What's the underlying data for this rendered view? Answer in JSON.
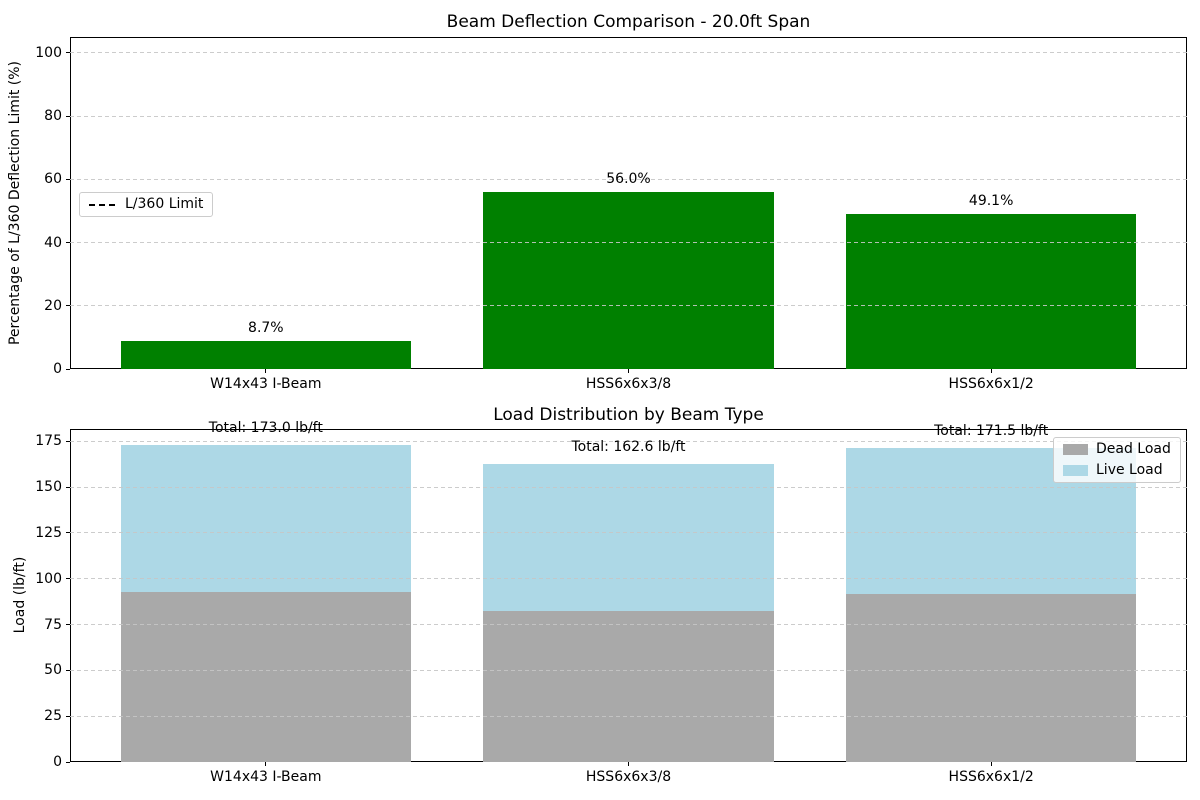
{
  "chart_data": [
    {
      "type": "bar",
      "title": "Beam Deflection Comparison - 20.0ft Span",
      "ylabel": "Percentage of L/360 Deflection Limit (%)",
      "xlabel": "",
      "categories": [
        "W14x43 I-Beam",
        "HSS6x6x3/8",
        "HSS6x6x1/2"
      ],
      "values": [
        8.7,
        56.0,
        49.1
      ],
      "value_labels": [
        "8.7%",
        "56.0%",
        "49.1%"
      ],
      "bar_color": "#008000",
      "yticks": [
        0,
        20,
        40,
        60,
        80,
        100
      ],
      "ylim": [
        0,
        105
      ],
      "grid": "horizontal-dashed",
      "limit_line": {
        "value": 100,
        "label": "L/360 Limit",
        "color": "#000000",
        "style": "dashed"
      },
      "legend_position": "center left",
      "legend_items": [
        {
          "label": "L/360 Limit",
          "marker": "dashed-line",
          "color": "#000000"
        }
      ]
    },
    {
      "type": "bar",
      "subtype": "stacked",
      "title": "Load Distribution by Beam Type",
      "ylabel": "Load (lb/ft)",
      "xlabel": "",
      "categories": [
        "W14x43 I-Beam",
        "HSS6x6x3/8",
        "HSS6x6x1/2"
      ],
      "series": [
        {
          "name": "Dead Load",
          "color": "#a9a9a9",
          "values": [
            93.0,
            82.6,
            91.5
          ]
        },
        {
          "name": "Live Load",
          "color": "#add8e6",
          "values": [
            80.0,
            80.0,
            80.0
          ]
        }
      ],
      "totals": [
        173.0,
        162.6,
        171.5
      ],
      "total_labels": [
        "Total: 173.0 lb/ft",
        "Total: 162.6 lb/ft",
        "Total: 171.5 lb/ft"
      ],
      "yticks": [
        0,
        25,
        50,
        75,
        100,
        125,
        150,
        175
      ],
      "ylim": [
        0,
        181.7
      ],
      "grid": "horizontal-dashed",
      "legend_position": "upper right",
      "legend_items": [
        {
          "label": "Dead Load",
          "marker": "rect",
          "color": "#a9a9a9"
        },
        {
          "label": "Live Load",
          "marker": "rect",
          "color": "#add8e6"
        }
      ]
    }
  ]
}
